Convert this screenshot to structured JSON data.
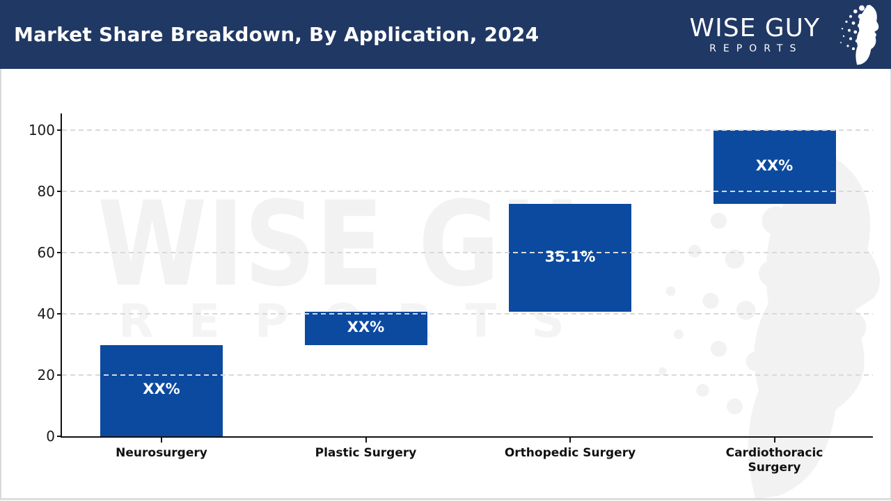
{
  "header": {
    "title": "Market Share Breakdown, By Application, 2024",
    "logo": {
      "line1": "WISE GUY",
      "line2": "REPORTS"
    }
  },
  "watermark": {
    "line1": "WISE GU",
    "line2": "REPORTS"
  },
  "colors": {
    "header_navy": "#203864",
    "bar_blue": "#0c4aa0",
    "grid_gray": "#d9d9d9",
    "axis_black": "#111111",
    "watermark_gray": "#f2f2f2"
  },
  "chart_data": {
    "type": "waterfall",
    "title": "Market Share Breakdown, By Application, 2024",
    "categories": [
      "Neurosurgery",
      "Plastic Surgery",
      "Orthopedic Surgery",
      "Cardiothoracic Surgery"
    ],
    "segments": [
      {
        "category": "Neurosurgery",
        "label": "XX%",
        "start": 0,
        "end": 29.8
      },
      {
        "category": "Plastic Surgery",
        "label": "XX%",
        "start": 29.8,
        "end": 40.7
      },
      {
        "category": "Orthopedic Surgery",
        "label": "35.1%",
        "start": 40.7,
        "end": 75.8,
        "value": 35.1
      },
      {
        "category": "Cardiothoracic Surgery",
        "label": "XX%",
        "start": 75.8,
        "end": 100
      }
    ],
    "yticks": [
      0,
      20,
      40,
      60,
      80,
      100
    ],
    "ylim": [
      0,
      105
    ],
    "xlabel": "",
    "ylabel": "",
    "grid": "horizontal-dashed",
    "legend": "none",
    "bar_color": "#0c4aa0"
  }
}
